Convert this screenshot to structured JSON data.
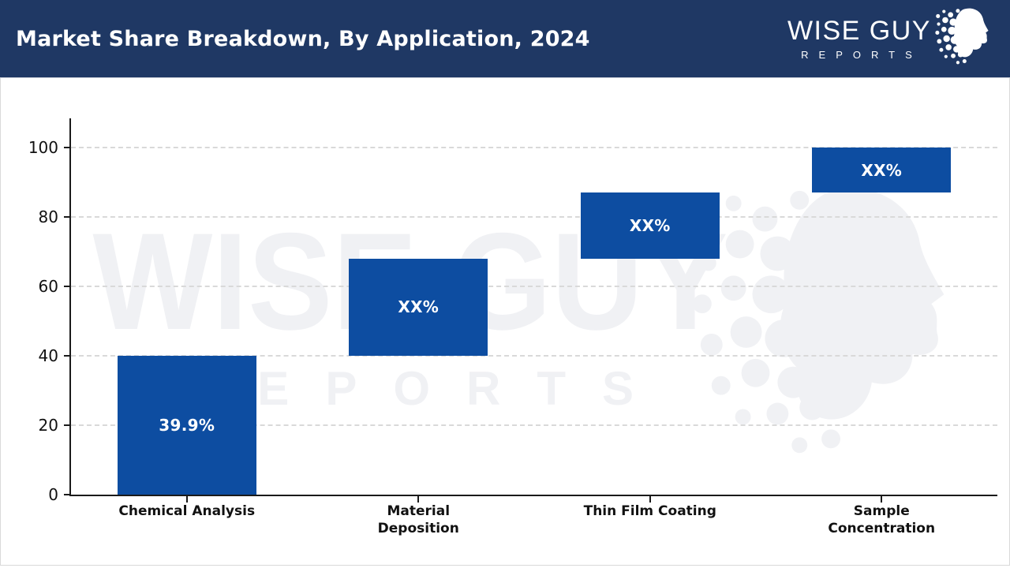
{
  "header": {
    "title": "Market Share Breakdown, By Application, 2024",
    "logo": {
      "line1": "WISE GUY",
      "line2": "REPORTS"
    }
  },
  "watermark": {
    "line1": "WISE GUY",
    "line2": "REPORTS"
  },
  "chart_data": {
    "type": "bar",
    "subtype": "floating-segment-waterfall",
    "title": "Market Share Breakdown, By Application, 2024",
    "categories": [
      "Chemical Analysis",
      "Material Deposition",
      "Thin Film Coating",
      "Sample Concentration"
    ],
    "category_label_lines": [
      [
        "Chemical Analysis"
      ],
      [
        "Material",
        "Deposition"
      ],
      [
        "Thin Film Coating"
      ],
      [
        "Sample",
        "Concentration"
      ]
    ],
    "segments": [
      {
        "category": "Chemical Analysis",
        "start": 0,
        "end": 39.9,
        "label": "39.9%"
      },
      {
        "category": "Material Deposition",
        "start": 40,
        "end": 68,
        "label": "XX%"
      },
      {
        "category": "Thin Film Coating",
        "start": 68,
        "end": 87,
        "label": "XX%"
      },
      {
        "category": "Sample Concentration",
        "start": 87,
        "end": 100,
        "label": "XX%"
      }
    ],
    "xlabel": "",
    "ylabel": "",
    "y_ticks": [
      0,
      20,
      40,
      60,
      80,
      100
    ],
    "ylim": [
      0,
      108
    ],
    "grid": "horizontal-dashed",
    "legend": "none",
    "colors": {
      "bar": "#0d4da1",
      "header_bg": "#1f3864",
      "grid": "#d9d9d9",
      "axis": "#1a1a1a",
      "watermark": "#f0f1f4",
      "bar_label_text": "#ffffff"
    }
  }
}
